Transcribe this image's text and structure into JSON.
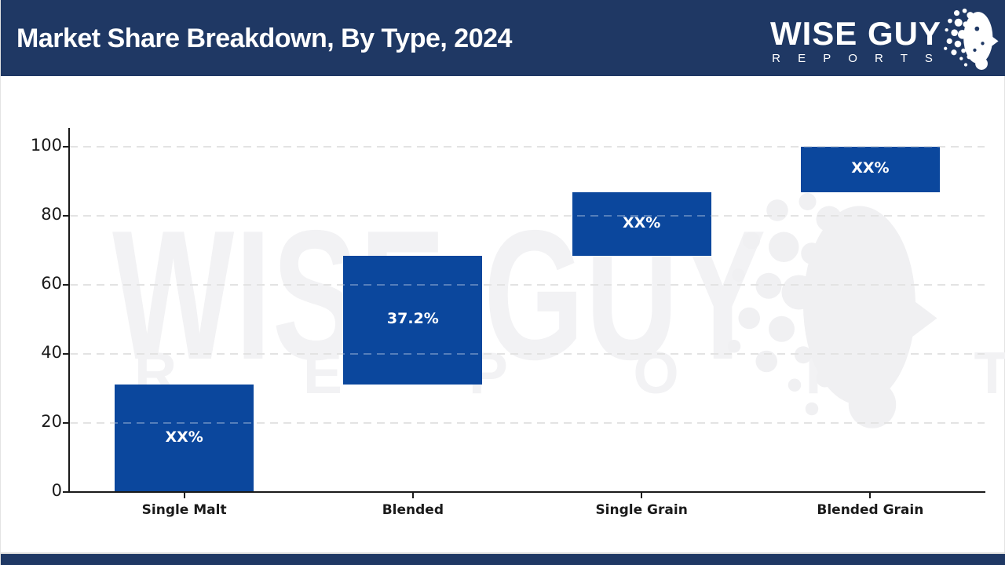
{
  "header": {
    "title": "Market Share Breakdown, By Type, 2024",
    "bg_color": "#1F3864",
    "text_color": "#FFFFFF"
  },
  "logo": {
    "line1": "WISE GUY",
    "line2": "R E P O R T S",
    "icon": "face-dots-icon"
  },
  "watermark": {
    "line1": "WISE GUY",
    "line2": "R E P O R T S",
    "color": "#F2F2F4"
  },
  "footer": {
    "bg_color": "#1F3864"
  },
  "chart_data": {
    "type": "bar",
    "subtype": "waterfall-floating-bars",
    "title": "Market Share Breakdown, By Type, 2024",
    "categories": [
      "Single Malt",
      "Blended",
      "Single Grain",
      "Blended Grain"
    ],
    "series": [
      {
        "name": "Market share segment",
        "starts": [
          0,
          31.1,
          68.3,
          86.9
        ],
        "values": [
          31.1,
          37.2,
          18.6,
          13.1
        ]
      }
    ],
    "bar_labels": [
      "XX%",
      "37.2%",
      "XX%",
      "XX%"
    ],
    "xlabel": "",
    "ylabel": "",
    "ylim": [
      0,
      100
    ],
    "yticks": [
      0,
      20,
      40,
      60,
      80,
      100
    ],
    "grid": "horizontal dashed",
    "grid_color": "#D7D7D7",
    "bar_color": "#0B479D",
    "axis_color": "#1A1A1A",
    "legend": "none"
  }
}
